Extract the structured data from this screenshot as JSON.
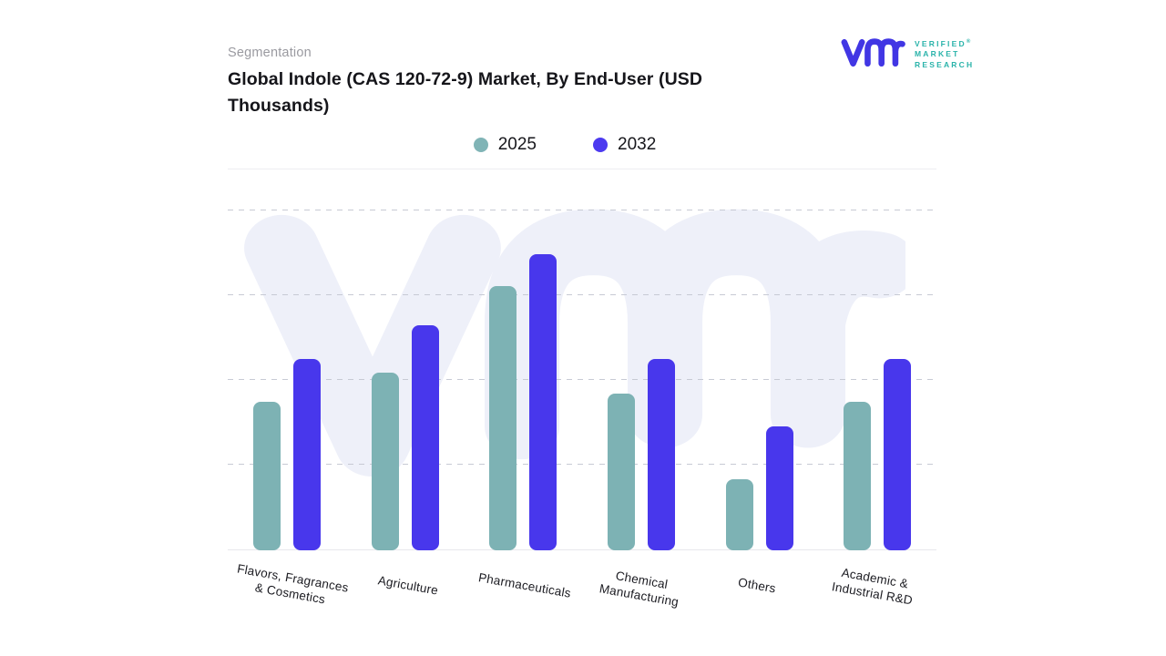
{
  "header": {
    "eyebrow": "Segmentation",
    "title_line1": "Global Indole (CAS 120-72-9) Market, By End-User (USD",
    "title_line2": "Thousands)"
  },
  "logo": {
    "brand_line1": "VERIFIED",
    "brand_line2": "MARKET",
    "brand_line3": "RESEARCH",
    "registered_mark": "®",
    "mark_color": "#4136e4",
    "text_color": "#2ab3aa"
  },
  "legend": {
    "items": [
      {
        "label": "2025",
        "color": "#80b4b6"
      },
      {
        "label": "2032",
        "color": "#4c3af0"
      }
    ]
  },
  "chart_data": {
    "type": "bar",
    "title": "Global Indole (CAS 120-72-9) Market, By End-User (USD Thousands)",
    "xlabel": "",
    "ylabel": "",
    "categories": [
      "Flavors, Fragrances & Cosmetics",
      "Agriculture",
      "Pharmaceuticals",
      "Chemical Manufacturing",
      "Others",
      "Academic & Industrial R&D"
    ],
    "category_label_lines": [
      [
        "Flavors, Fragrances",
        "& Cosmetics"
      ],
      [
        "Agriculture"
      ],
      [
        "Pharmaceuticals"
      ],
      [
        "Chemical",
        "Manufacturing"
      ],
      [
        "Others"
      ],
      [
        "Academic &",
        "Industrial R&D"
      ]
    ],
    "series": [
      {
        "name": "2025",
        "color": "#7db2b4",
        "values_pct": [
          43,
          51.5,
          76.5,
          45.5,
          20.5,
          43
        ],
        "values_gridline_units": [
          1.74,
          2.09,
          3.1,
          1.85,
          0.82,
          1.74
        ]
      },
      {
        "name": "2032",
        "color": "#4837ec",
        "values_pct": [
          55.5,
          65.2,
          85.8,
          55.5,
          36,
          55.5
        ],
        "values_gridline_units": [
          2.26,
          2.64,
          3.48,
          2.26,
          1.45,
          2.26
        ]
      }
    ],
    "y_axis": {
      "tick_labels_visible": false,
      "gridline_count": 4,
      "gridline_style": "dashed",
      "ylim_pct": [
        0,
        100
      ]
    },
    "legend_position": "top-center",
    "note_units": "no numeric axis labels shown; values estimated as % of plot height and in dashed-gridline intervals"
  },
  "watermark": {
    "glyph": "vmr",
    "color": "#eef0f9"
  }
}
